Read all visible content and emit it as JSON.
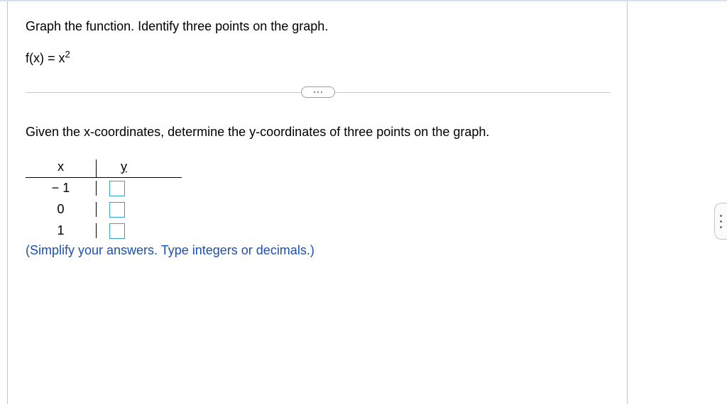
{
  "problem": {
    "heading": "Graph the function. Identify three points on the graph.",
    "formula_prefix": "f(x) = x",
    "formula_exponent": "2"
  },
  "subprompt": "Given the x-coordinates, determine the y-coordinates of three points on the graph.",
  "table": {
    "header_x": "x",
    "header_y": "y",
    "x_values": [
      "− 1",
      "0",
      "1"
    ],
    "y_values": [
      "",
      "",
      ""
    ]
  },
  "hint": "(Simplify your answers. Type integers or decimals.)",
  "colors": {
    "input_border": "#36a0da",
    "hint_text": "#1a4fb4",
    "divider": "#c8c8c8",
    "top_border": "#d8e0ee"
  }
}
